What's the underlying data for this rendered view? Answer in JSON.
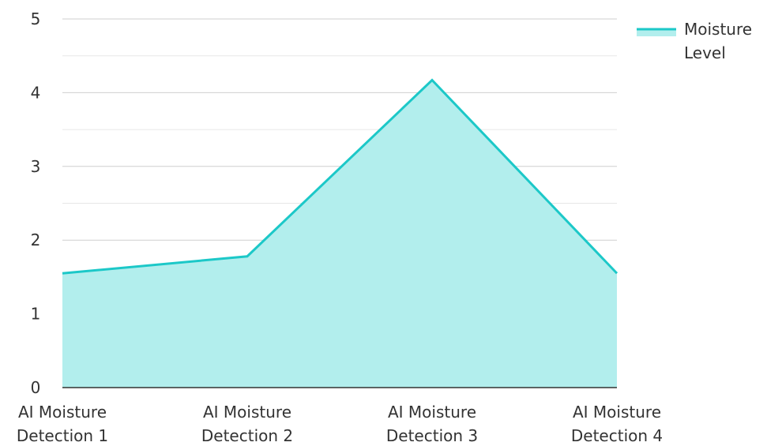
{
  "chart_data": {
    "type": "area",
    "categories": [
      [
        "AI Moisture",
        "Detection 1"
      ],
      [
        "AI Moisture",
        "Detection 2"
      ],
      [
        "AI Moisture",
        "Detection 3"
      ],
      [
        "AI Moisture",
        "Detection 4"
      ]
    ],
    "series": [
      {
        "name_lines": [
          "Moisture",
          "Level"
        ],
        "values": [
          1.55,
          1.78,
          4.17,
          1.55
        ],
        "line_color": "#1cc8c8",
        "fill_color": "#b2eeed"
      }
    ],
    "ylim": [
      0,
      5
    ],
    "yticks": [
      "0",
      "1",
      "2",
      "3",
      "4",
      "5"
    ],
    "minor_grid_step": 0.5,
    "grid": true,
    "legend_position": "top-right"
  }
}
